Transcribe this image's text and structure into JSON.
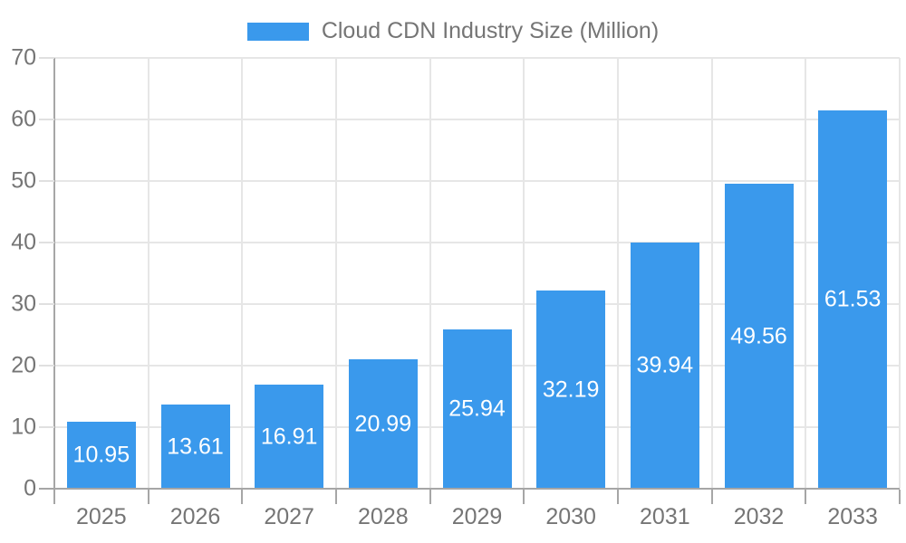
{
  "legend": {
    "label": "Cloud CDN Industry Size (Million)"
  },
  "chart_data": {
    "type": "bar",
    "title": "Cloud CDN Industry Size (Million)",
    "categories": [
      "2025",
      "2026",
      "2027",
      "2028",
      "2029",
      "2030",
      "2031",
      "2032",
      "2033"
    ],
    "series": [
      {
        "name": "Cloud CDN Industry Size (Million)",
        "values": [
          10.95,
          13.61,
          16.91,
          20.99,
          25.94,
          32.19,
          39.94,
          49.56,
          61.53
        ]
      }
    ],
    "value_labels": [
      "10.95",
      "13.61",
      "16.91",
      "20.99",
      "25.94",
      "32.19",
      "39.94",
      "49.56",
      "61.53"
    ],
    "xlabel": "",
    "ylabel": "",
    "ylim": [
      0,
      70
    ],
    "ytick_interval": 10,
    "yticks": [
      0,
      10,
      20,
      30,
      40,
      50,
      60,
      70
    ],
    "grid": "both",
    "legend_position": "top-center",
    "colors": {
      "bar": "#3A99EC",
      "bar_label": "#FFFFFF",
      "axis_text": "#757575",
      "legend_text": "#757575",
      "gridline": "#E6E6E6",
      "axis_line": "#A6A6A6",
      "background": "#FFFFFF"
    }
  }
}
